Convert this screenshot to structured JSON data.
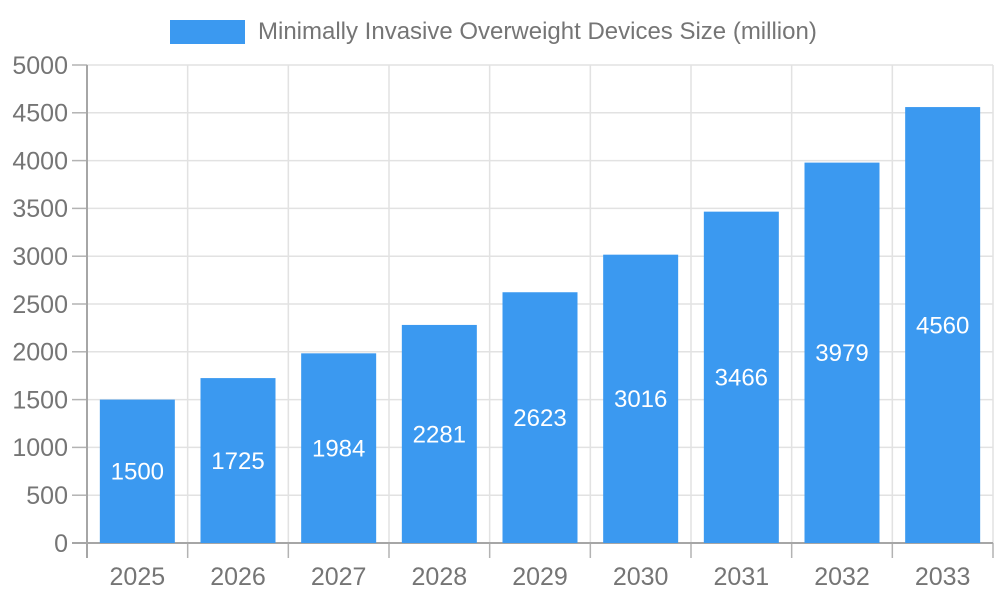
{
  "chart_data": {
    "type": "bar",
    "title": "Minimally Invasive Overweight Devices Size (million)",
    "legend": [
      "Minimally Invasive Overweight Devices Size (million)"
    ],
    "legend_position": "top",
    "categories": [
      "2025",
      "2026",
      "2027",
      "2028",
      "2029",
      "2030",
      "2031",
      "2032",
      "2033"
    ],
    "values": [
      1500,
      1725,
      1984,
      2281,
      2623,
      3016,
      3466,
      3979,
      4560
    ],
    "xlabel": "",
    "ylabel": "",
    "ylim": [
      0,
      5000
    ],
    "ytick_step": 500,
    "y_tick_labels": [
      "0",
      "500",
      "1000",
      "1500",
      "2000",
      "2500",
      "3000",
      "3500",
      "4000",
      "4500",
      "5000"
    ],
    "grid": true,
    "bar_value_labels_inside": true
  },
  "colors": {
    "bar": "#3B99F0",
    "bar_label": "#FFFFFF",
    "axis": "#A6A6A6",
    "tick": "#B3B3B3",
    "grid": "#E2E2E2",
    "text": "#757575"
  }
}
